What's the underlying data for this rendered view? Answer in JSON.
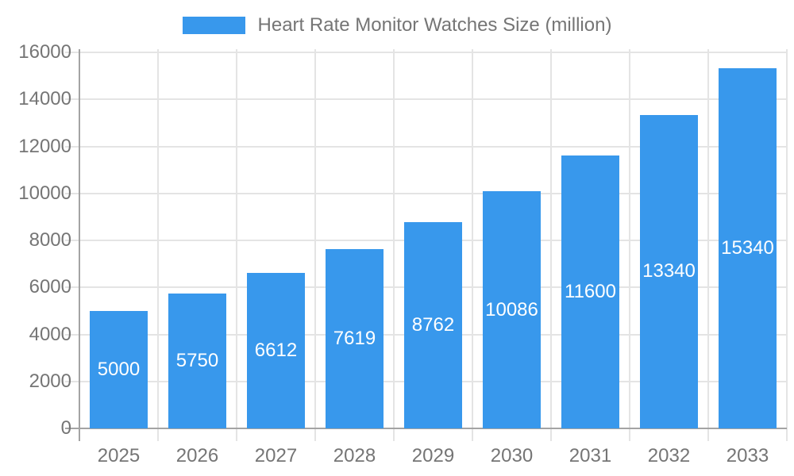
{
  "chart_data": {
    "type": "bar",
    "title": "Heart Rate Monitor Watches Size (million)",
    "legend_entries": [
      "Heart Rate Monitor Watches Size (million)"
    ],
    "legend_position": "top",
    "categories": [
      "2025",
      "2026",
      "2027",
      "2028",
      "2029",
      "2030",
      "2031",
      "2032",
      "2033"
    ],
    "series": [
      {
        "name": "Heart Rate Monitor Watches Size (million)",
        "values": [
          5000,
          5750,
          6612,
          7619,
          8762,
          10086,
          11600,
          13340,
          15340
        ]
      }
    ],
    "bar_value_labels": [
      "5000",
      "5750",
      "6612",
      "7619",
      "8762",
      "10086",
      "11600",
      "13340",
      "15340"
    ],
    "xlabel": "",
    "ylabel": "",
    "ylim": [
      0,
      16000
    ],
    "yticks": [
      0,
      2000,
      4000,
      6000,
      8000,
      10000,
      12000,
      14000,
      16000
    ],
    "grid": true,
    "value_label_position": "inside-center"
  },
  "colors": {
    "bar": "#3898EC",
    "gridline": "#e4e4e4",
    "axis_line": "#a3a3a3",
    "tick_label": "#757575",
    "legend_text": "#757575",
    "bar_value_label": "#ffffff",
    "background": "#ffffff"
  }
}
